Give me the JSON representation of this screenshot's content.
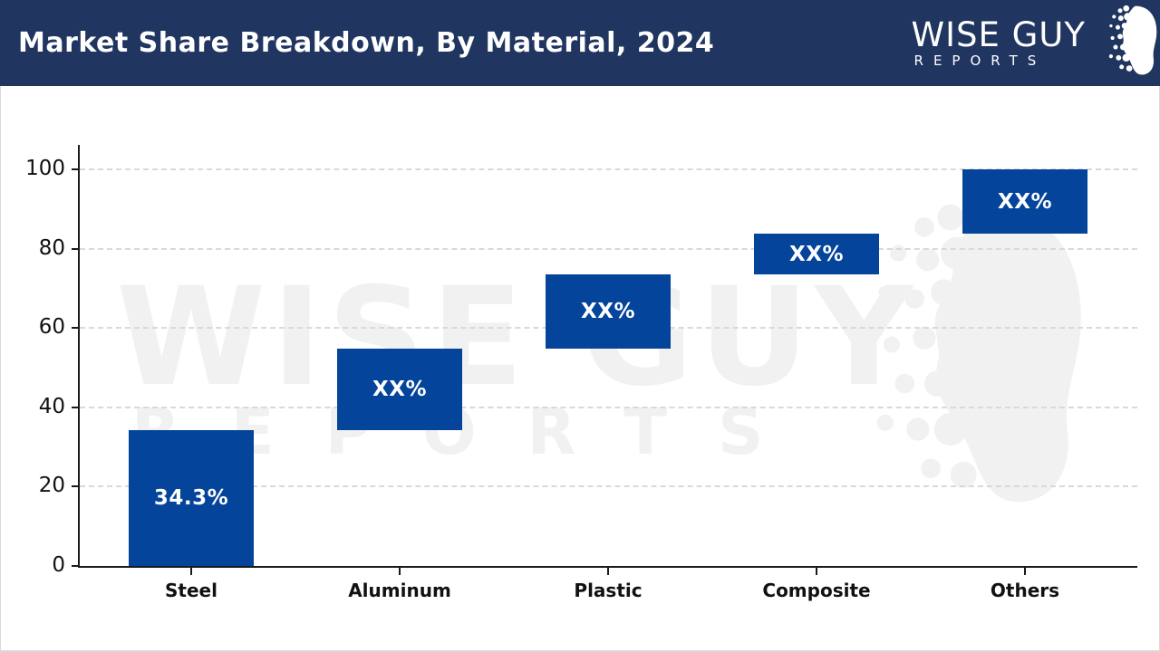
{
  "header": {
    "title": "Market Share Breakdown, By Material, 2024",
    "logo": {
      "line1": "WISE GUY",
      "line2": "REPORTS"
    }
  },
  "watermark": {
    "line1": "WISE GUY",
    "line2": "REPORTS"
  },
  "colors": {
    "header_bg": "#20355f",
    "bar": "#05449b",
    "bar_label": "#ffffff",
    "grid": "#d9d9d9",
    "axis": "#1a1a1a",
    "watermark": "#f1f1f1",
    "border": "#d9d9d9"
  },
  "chart_data": {
    "type": "bar",
    "subtype": "waterfall",
    "title": "Market Share Breakdown, By Material, 2024",
    "xlabel": "",
    "ylabel": "",
    "categories": [
      "Steel",
      "Aluminum",
      "Plastic",
      "Composite",
      "Others"
    ],
    "segments": [
      {
        "category": "Steel",
        "start": 0,
        "end": 34.3,
        "value": 34.3,
        "label": "34.3%"
      },
      {
        "category": "Aluminum",
        "start": 34.3,
        "end": 54.9,
        "value": 20.6,
        "label": "XX%"
      },
      {
        "category": "Plastic",
        "start": 54.9,
        "end": 73.5,
        "value": 18.6,
        "label": "XX%"
      },
      {
        "category": "Composite",
        "start": 73.5,
        "end": 83.7,
        "value": 10.2,
        "label": "XX%"
      },
      {
        "category": "Others",
        "start": 83.7,
        "end": 100,
        "value": 16.3,
        "label": "XX%"
      }
    ],
    "yticks": [
      0,
      20,
      40,
      60,
      80,
      100
    ],
    "ylim": [
      0,
      106
    ],
    "grid": "horizontal-dashed",
    "legend": "none",
    "bar_color": "#05449b",
    "label_color": "#ffffff"
  }
}
